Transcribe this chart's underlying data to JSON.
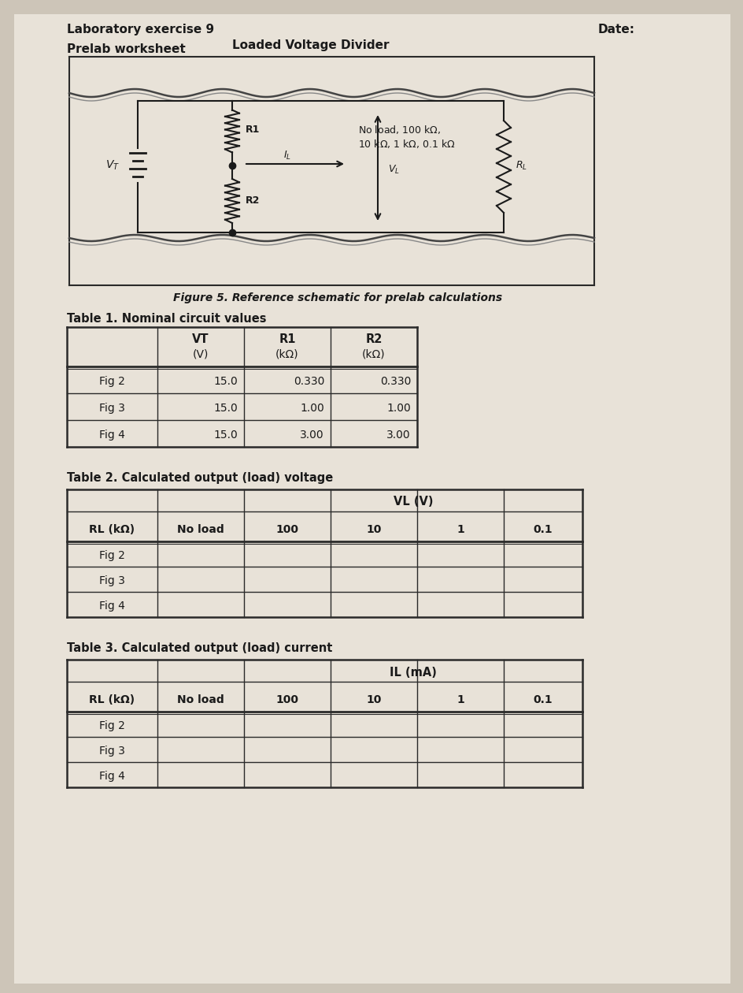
{
  "bg_color": "#cdc5b8",
  "paper_color": "#e8e2d8",
  "header_lab": "Laboratory exercise 9",
  "header_date": "Date:",
  "header_prelab": "Prelab worksheet",
  "header_title": "Loaded Voltage Divider",
  "fig_caption": "Figure 5. Reference schematic for prelab calculations",
  "table1_title": "Table 1. Nominal circuit values",
  "table1_rows": [
    [
      "Fig 2",
      "15.0",
      "0.330",
      "0.330"
    ],
    [
      "Fig 3",
      "15.0",
      "1.00",
      "1.00"
    ],
    [
      "Fig 4",
      "15.0",
      "3.00",
      "3.00"
    ]
  ],
  "table2_title": "Table 2. Calculated output (load) voltage",
  "table2_top_header": "VL (V)",
  "table2_col_headers": [
    "RL (kΩ)",
    "No load",
    "100",
    "10",
    "1",
    "0.1"
  ],
  "table2_rows": [
    "Fig 2",
    "Fig 3",
    "Fig 4"
  ],
  "table3_title": "Table 3. Calculated output (load) current",
  "table3_top_header": "IL (mA)",
  "table3_col_headers": [
    "RL (kΩ)",
    "No load",
    "100",
    "10",
    "1",
    "0.1"
  ],
  "table3_rows": [
    "Fig 2",
    "Fig 3",
    "Fig 4"
  ]
}
